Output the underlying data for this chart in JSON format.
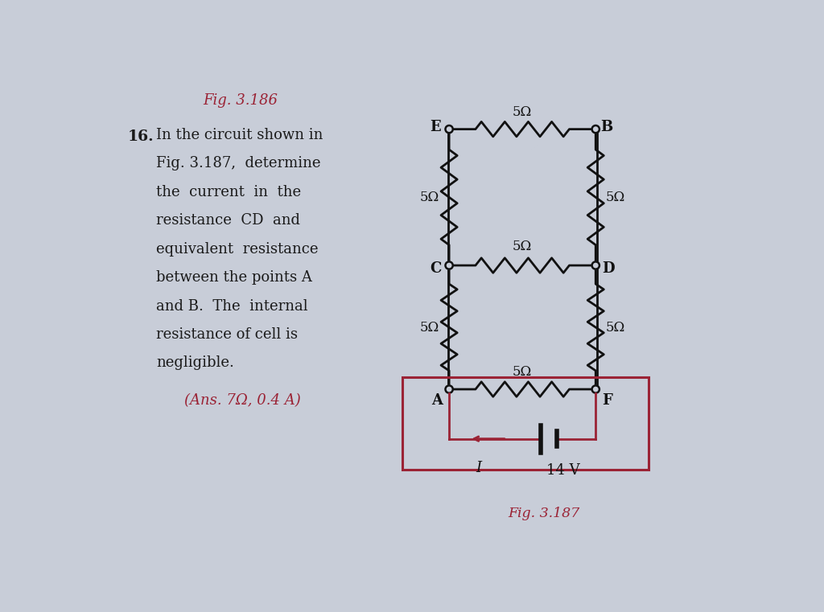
{
  "title_fig186": "Fig. 3.186",
  "title_fig187": "Fig. 3.187",
  "question_number": "16.",
  "question_lines": [
    "In the circuit shown in",
    "Fig. 3.187,  determine",
    "the  current  in  the",
    "resistance  CD  and",
    "equivalent  resistance",
    "between the points A",
    "and B.  The  internal",
    "resistance of cell is",
    "negligible."
  ],
  "answer_text": "(Ans. 7Ω, 0.4 A)",
  "bg_color": "#c8cdd8",
  "text_color": "#1a1a1a",
  "red_color": "#9b2335",
  "circuit_color": "#111111",
  "fig_caption_color": "#9b2335",
  "battery_voltage": "14 V",
  "current_label": "I",
  "node_names": [
    "E",
    "B",
    "C",
    "D",
    "A",
    "F"
  ],
  "resistor_labels": [
    "5Ω",
    "5Ω",
    "5Ω",
    "5Ω",
    "5Ω",
    "5Ω",
    "5Ω"
  ]
}
